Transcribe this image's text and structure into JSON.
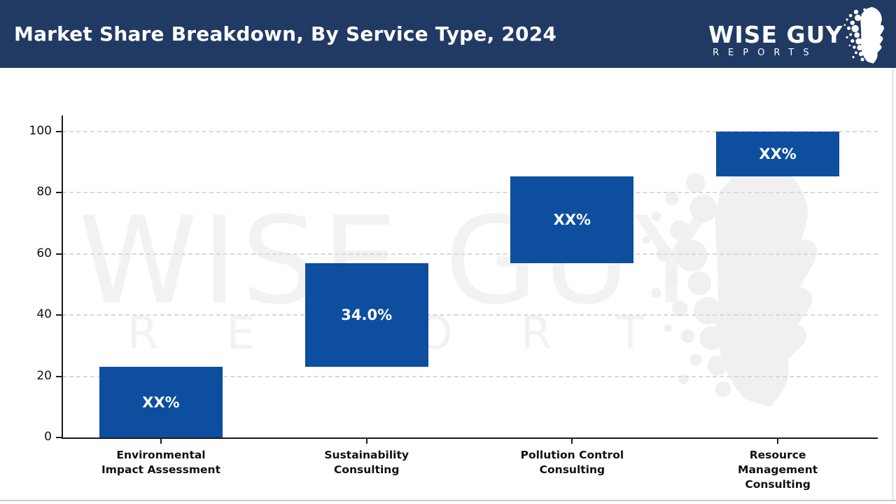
{
  "header": {
    "title": "Market Share Breakdown, By Service Type, 2024",
    "brand": {
      "name": "WISE GUY",
      "sub": "REPORTS"
    },
    "bg_color": "#213a64"
  },
  "watermark": {
    "line1": "WISE GUY",
    "line2": "REPORTS"
  },
  "chart_data": {
    "type": "bar",
    "subtype": "waterfall-floating-bars",
    "title": "Market Share Breakdown, By Service Type, 2024",
    "categories": [
      "Environmental\nImpact Assessment",
      "Sustainability\nConsulting",
      "Pollution Control\nConsulting",
      "Resource\nManagement\nConsulting"
    ],
    "series": [
      {
        "name": "Market Share",
        "segments": [
          {
            "start": 0,
            "end": 23,
            "label": "XX%"
          },
          {
            "start": 23,
            "end": 57,
            "label": "34.0%"
          },
          {
            "start": 57,
            "end": 85.3,
            "label": "XX%"
          },
          {
            "start": 85.3,
            "end": 100,
            "label": "XX%"
          }
        ]
      }
    ],
    "xlabel": "",
    "ylabel": "",
    "ylim": [
      0,
      105
    ],
    "yticks": [
      0,
      20,
      40,
      60,
      80,
      100
    ],
    "grid": "horizontal-dashed",
    "legend": "none",
    "bar_color": "#0d4e9f",
    "value_label_color": "#ffffff"
  }
}
